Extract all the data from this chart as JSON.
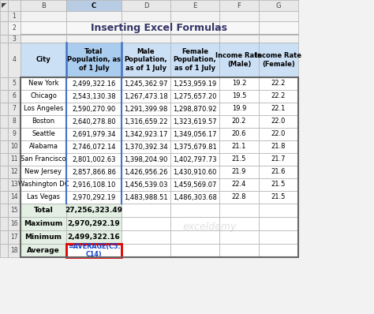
{
  "title": "Inserting Excel Formulas",
  "col_headers": [
    "City",
    "Total\nPopulation, as\nof 1 July",
    "Male\nPopulation,\nas of 1 July",
    "Female\nPopulation,\nas of 1 July",
    "Income Rate\n(Male)",
    "Income Rate\n(Female)"
  ],
  "rows": [
    [
      "New York",
      "2,499,322.16",
      "1,245,362.97",
      "1,253,959.19",
      "19.2",
      "22.2"
    ],
    [
      "Chicago",
      "2,543,130.38",
      "1,267,473.18",
      "1,275,657.20",
      "19.5",
      "22.2"
    ],
    [
      "Los Angeles",
      "2,590,270.90",
      "1,291,399.98",
      "1,298,870.92",
      "19.9",
      "22.1"
    ],
    [
      "Boston",
      "2,640,278.80",
      "1,316,659.22",
      "1,323,619.57",
      "20.2",
      "22.0"
    ],
    [
      "Seattle",
      "2,691,979.34",
      "1,342,923.17",
      "1,349,056.17",
      "20.6",
      "22.0"
    ],
    [
      "Alabama",
      "2,746,072.14",
      "1,370,392.34",
      "1,375,679.81",
      "21.1",
      "21.8"
    ],
    [
      "San Francisco",
      "2,801,002.63",
      "1,398,204.90",
      "1,402,797.73",
      "21.5",
      "21.7"
    ],
    [
      "New Jersey",
      "2,857,866.86",
      "1,426,956.26",
      "1,430,910.60",
      "21.9",
      "21.6"
    ],
    [
      "Washington DC",
      "2,916,108.10",
      "1,456,539.03",
      "1,459,569.07",
      "22.4",
      "21.5"
    ],
    [
      "Las Vegas",
      "2,970,292.19",
      "1,483,988.51",
      "1,486,303.68",
      "22.8",
      "21.5"
    ]
  ],
  "summary_rows": [
    [
      "Total",
      "27,256,323.49",
      "",
      "",
      "",
      ""
    ],
    [
      "Maximum",
      "2,970,292.19",
      "",
      "",
      "",
      ""
    ],
    [
      "Minimum",
      "2,499,322.16",
      "",
      "",
      "",
      ""
    ],
    [
      "Average",
      "=AVERAGE(C5:\nC14)",
      "",
      "",
      "",
      ""
    ]
  ],
  "header_bg": "#cce0f5",
  "data_bg": "#ffffff",
  "summary_bg": "#e2efe2",
  "grid_color": "#b0b0b0",
  "col_C_highlight_hdr": "#aaccee",
  "col_C_border": "#4472c4",
  "avg_border": "#dd0000",
  "avg_formula_color": "#1144cc",
  "title_color": "#333366",
  "watermark_color": "#c8c8c8",
  "row_num_bg": "#e8e8e8",
  "col_letter_bg": "#e8e8e8",
  "col_C_letter_bg": "#b8cce4",
  "outer_border_color": "#666666",
  "fig_bg": "#f2f2f2"
}
